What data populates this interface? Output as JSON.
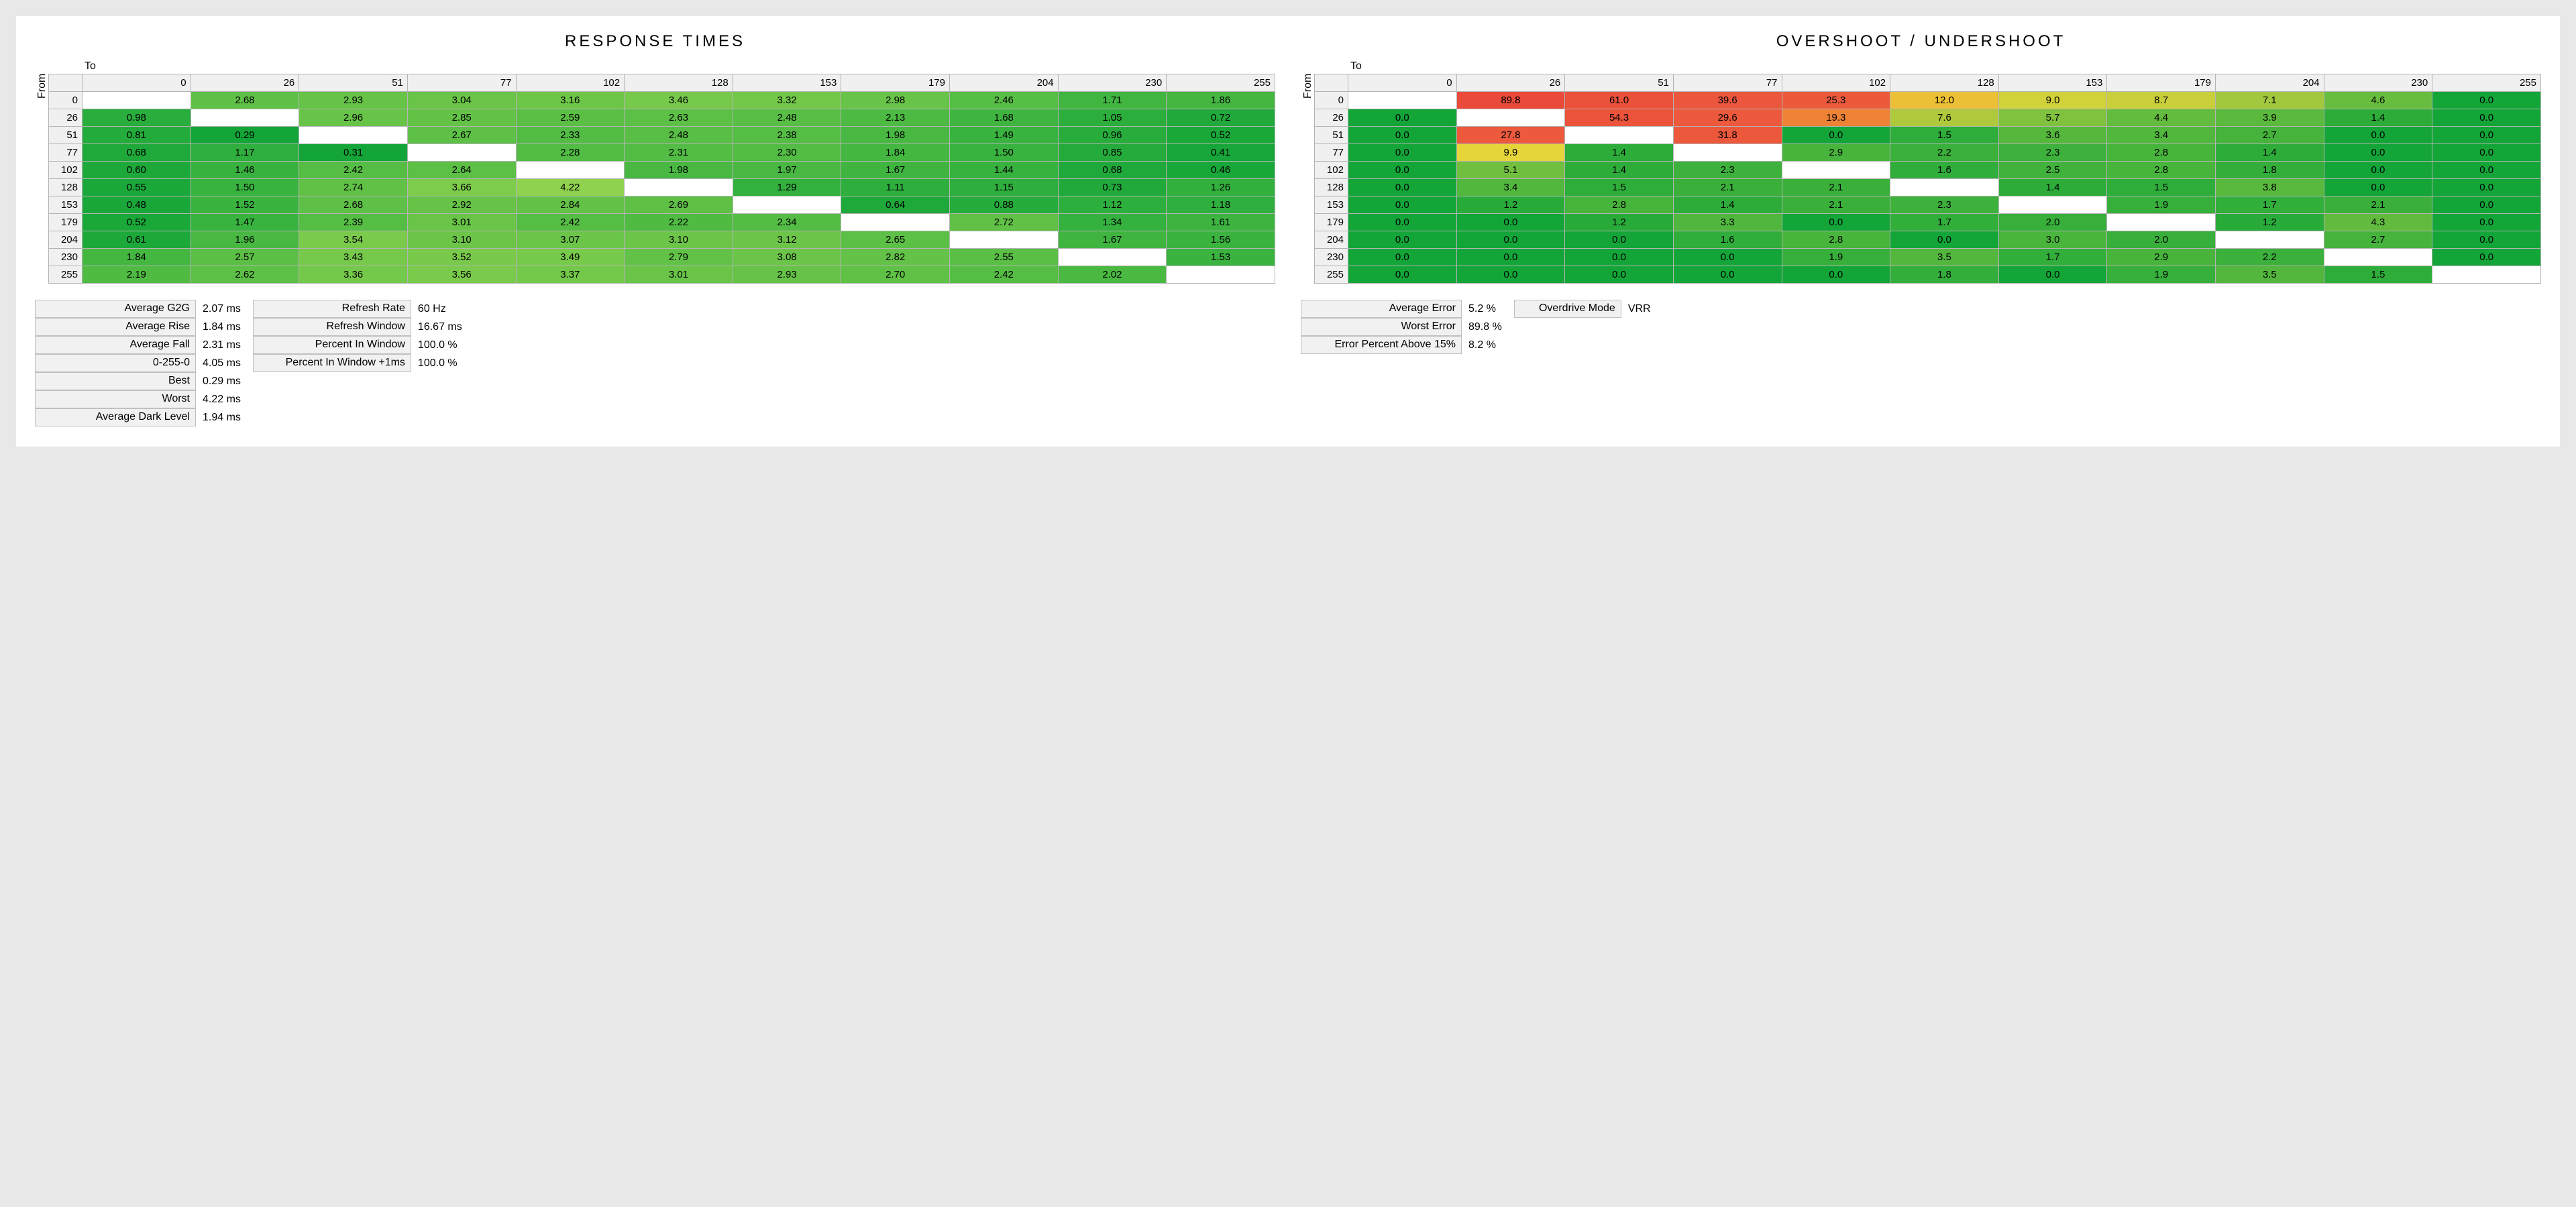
{
  "meta": {
    "colors": {
      "page_bg": "#e8e8e8",
      "card_bg": "#ffffff",
      "grid_border": "#b4b4b4",
      "header_bg": "#f0f0f0",
      "summary_label_bg": "#f1f1f1"
    },
    "fontsize": {
      "title": 24,
      "axis_label": 16,
      "cell": 15,
      "summary": 16
    }
  },
  "levels": [
    "0",
    "26",
    "51",
    "77",
    "102",
    "128",
    "153",
    "179",
    "204",
    "230",
    "255"
  ],
  "axis": {
    "row": "From",
    "col": "To"
  },
  "response": {
    "title": "RESPONSE TIMES",
    "precision": 2,
    "rows": [
      [
        null,
        2.68,
        2.93,
        3.04,
        3.16,
        3.46,
        3.32,
        2.98,
        2.46,
        1.71,
        1.86
      ],
      [
        0.98,
        null,
        2.96,
        2.85,
        2.59,
        2.63,
        2.48,
        2.13,
        1.68,
        1.05,
        0.72
      ],
      [
        0.81,
        0.29,
        null,
        2.67,
        2.33,
        2.48,
        2.38,
        1.98,
        1.49,
        0.96,
        0.52
      ],
      [
        0.68,
        1.17,
        0.31,
        null,
        2.28,
        2.31,
        2.3,
        1.84,
        1.5,
        0.85,
        0.41
      ],
      [
        0.6,
        1.46,
        2.42,
        2.64,
        null,
        1.98,
        1.97,
        1.67,
        1.44,
        0.68,
        0.46
      ],
      [
        0.55,
        1.5,
        2.74,
        3.66,
        4.22,
        null,
        1.29,
        1.11,
        1.15,
        0.73,
        1.26
      ],
      [
        0.48,
        1.52,
        2.68,
        2.92,
        2.84,
        2.69,
        null,
        0.64,
        0.88,
        1.12,
        1.18
      ],
      [
        0.52,
        1.47,
        2.39,
        3.01,
        2.42,
        2.22,
        2.34,
        null,
        2.72,
        1.34,
        1.61
      ],
      [
        0.61,
        1.96,
        3.54,
        3.1,
        3.07,
        3.1,
        3.12,
        2.65,
        null,
        1.67,
        1.56
      ],
      [
        1.84,
        2.57,
        3.43,
        3.52,
        3.49,
        2.79,
        3.08,
        2.82,
        2.55,
        null,
        1.53
      ],
      [
        2.19,
        2.62,
        3.36,
        3.56,
        3.37,
        3.01,
        2.93,
        2.7,
        2.42,
        2.02,
        null
      ]
    ],
    "color_scale": {
      "min": 0.29,
      "max": 4.22,
      "low": "#13a538",
      "high": "#8fd24f"
    },
    "summary_left": [
      {
        "label": "Average G2G",
        "value": "2.07 ms"
      },
      {
        "label": "Average Rise",
        "value": "1.84 ms"
      },
      {
        "label": "Average Fall",
        "value": "2.31 ms"
      },
      {
        "label": "0-255-0",
        "value": "4.05 ms"
      },
      {
        "label": "Best",
        "value": "0.29 ms"
      },
      {
        "label": "Worst",
        "value": "4.22 ms"
      },
      {
        "label": "Average Dark Level",
        "value": "1.94 ms"
      }
    ],
    "summary_right": [
      {
        "label": "Refresh Rate",
        "value": "60 Hz"
      },
      {
        "label": "Refresh Window",
        "value": "16.67 ms"
      },
      {
        "label": "Percent In Window",
        "value": "100.0 %"
      },
      {
        "label": "Percent In Window +1ms",
        "value": "100.0 %"
      }
    ]
  },
  "overshoot": {
    "title": "OVERSHOOT / UNDERSHOOT",
    "precision": 1,
    "rows": [
      [
        null,
        89.8,
        61.0,
        39.6,
        25.3,
        12.0,
        9.0,
        8.7,
        7.1,
        4.6,
        0.0
      ],
      [
        0.0,
        null,
        54.3,
        29.6,
        19.3,
        7.6,
        5.7,
        4.4,
        3.9,
        1.4,
        0.0
      ],
      [
        0.0,
        27.8,
        null,
        31.8,
        0.0,
        1.5,
        3.6,
        3.4,
        2.7,
        0.0,
        0.0
      ],
      [
        0.0,
        9.9,
        1.4,
        null,
        2.9,
        2.2,
        2.3,
        2.8,
        1.4,
        0.0,
        0.0
      ],
      [
        0.0,
        5.1,
        1.4,
        2.3,
        null,
        1.6,
        2.5,
        2.8,
        1.8,
        0.0,
        0.0
      ],
      [
        0.0,
        3.4,
        1.5,
        2.1,
        2.1,
        null,
        1.4,
        1.5,
        3.8,
        0.0,
        0.0
      ],
      [
        0.0,
        1.2,
        2.8,
        1.4,
        2.1,
        2.3,
        null,
        1.9,
        1.7,
        2.1,
        0.0
      ],
      [
        0.0,
        0.0,
        1.2,
        3.3,
        0.0,
        1.7,
        2.0,
        null,
        1.2,
        4.3,
        0.0
      ],
      [
        0.0,
        0.0,
        0.0,
        1.6,
        2.8,
        0.0,
        3.0,
        2.0,
        null,
        2.7,
        0.0
      ],
      [
        0.0,
        0.0,
        0.0,
        0.0,
        1.9,
        3.5,
        1.7,
        2.9,
        2.2,
        null,
        0.0
      ],
      [
        0.0,
        0.0,
        0.0,
        0.0,
        0.0,
        1.8,
        0.0,
        1.9,
        3.5,
        1.5,
        null
      ]
    ],
    "color_scale": {
      "stops": [
        {
          "v": 0,
          "c": "#13a538"
        },
        {
          "v": 5,
          "c": "#6fbf3f"
        },
        {
          "v": 10,
          "c": "#e8d53a"
        },
        {
          "v": 15,
          "c": "#f0a030"
        },
        {
          "v": 25,
          "c": "#ec5a3c"
        },
        {
          "v": 90,
          "c": "#ea4a3a"
        }
      ]
    },
    "summary_left": [
      {
        "label": "Average Error",
        "value": "5.2 %"
      },
      {
        "label": "Worst Error",
        "value": "89.8 %"
      },
      {
        "label": "Error Percent Above 15%",
        "value": "8.2 %"
      }
    ],
    "summary_right": [
      {
        "label": "Overdrive Mode",
        "value": "VRR"
      }
    ]
  }
}
